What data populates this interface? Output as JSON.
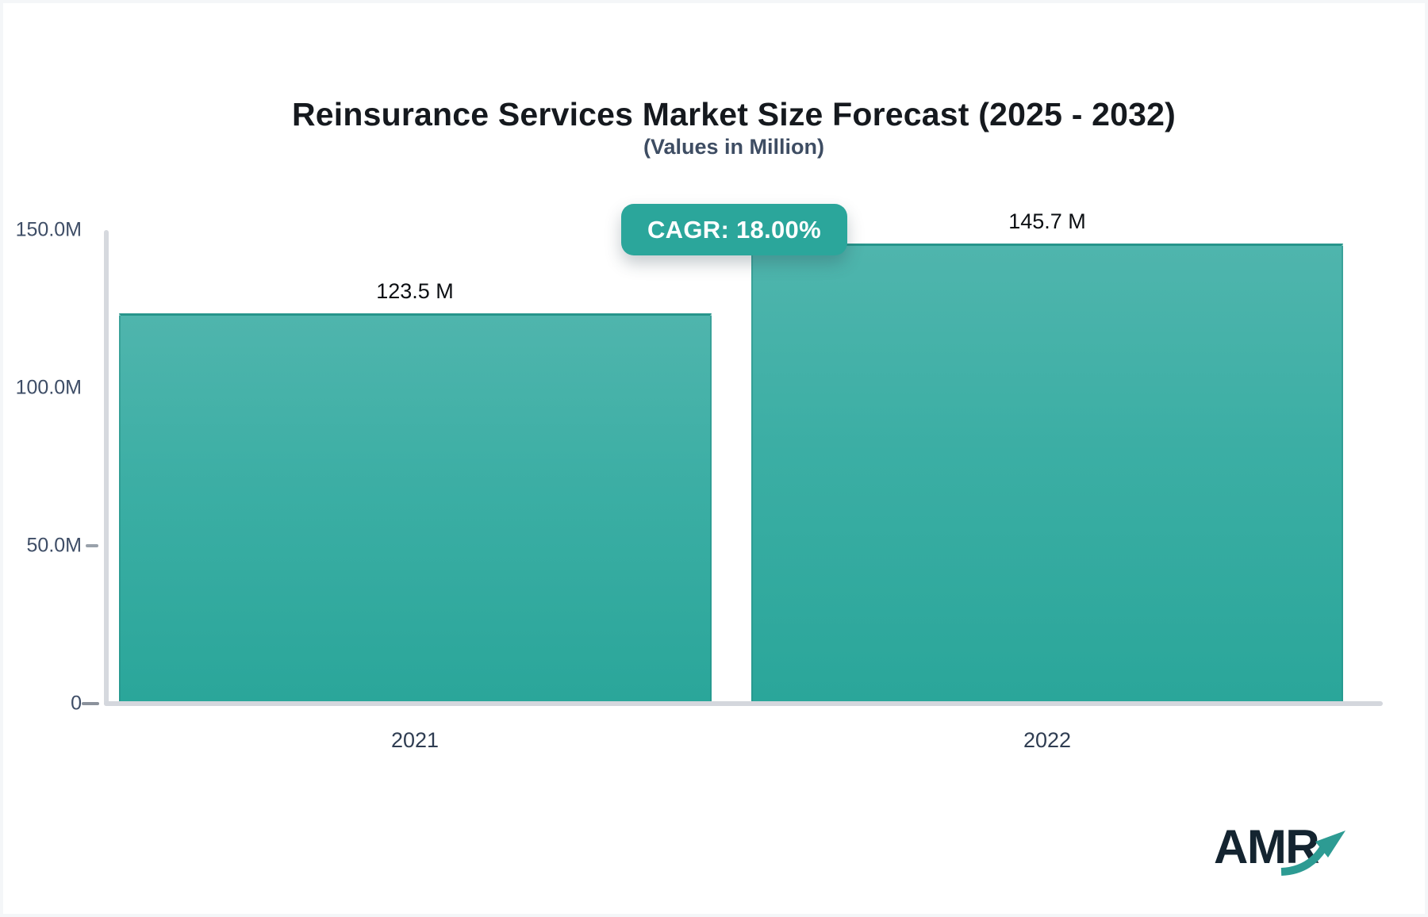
{
  "header": {
    "title": "Reinsurance Services Market Size Forecast (2025 - 2032)",
    "subtitle": "(Values in Million)"
  },
  "cagr_badge": {
    "label": "CAGR: 18.00%",
    "background_color": "#2BA69B",
    "text_color": "#ffffff"
  },
  "chart_data": {
    "type": "bar",
    "title": "Reinsurance Services Market Size Forecast (2025 - 2032)",
    "subtitle": "(Values in Million)",
    "unit": "Million",
    "categories": [
      "2021",
      "2022"
    ],
    "values": [
      123.5,
      145.7
    ],
    "value_labels": [
      "123.5 M",
      "145.7 M"
    ],
    "ylim": [
      0,
      150
    ],
    "yticks": [
      150,
      100,
      50,
      0
    ],
    "ytick_labels": [
      "150.0M",
      "100.0M",
      "50.0M",
      "0"
    ],
    "cagr_percent": "18.00%",
    "grid": false,
    "legend": false,
    "bar_color_top": "#4FB5AD",
    "bar_color_bottom": "#2AA69A",
    "axis_color": "#d6d9de"
  },
  "logo": {
    "text": "AMR",
    "text_color": "#142430",
    "arrow_color": "#2d9b93"
  }
}
